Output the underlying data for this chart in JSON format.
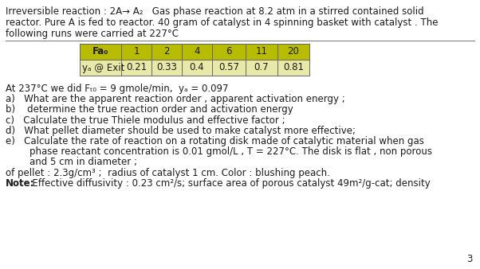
{
  "title_line1": "Irreversible reaction : 2A→ A₂   Gas phase reaction at 8.2 atm in a stirred contained solid",
  "title_line2": "reactor. Pure A is fed to reactor. 40 gram of catalyst in 4 spinning basket with catalyst . The",
  "title_line3": "following runs were carried at 227°C",
  "table_header": [
    "Fa₀",
    "1",
    "2",
    "4",
    "6",
    "11",
    "20"
  ],
  "table_row_label": "yₐ @ Exit",
  "table_row_values": [
    "0.21",
    "0.33",
    "0.4",
    "0.57",
    "0.7",
    "0.81"
  ],
  "table_header_bg": "#b8bc00",
  "table_row_bg": "#e8e8a8",
  "body_lines": [
    "At 237°C we did Fₜ₀ = 9 gmole/min,  yₐ = 0.097",
    "a)   What are the apparent reaction order , apparent activation energy ;",
    "b)    determine the true reaction order and activation energy",
    "c)   Calculate the true Thiele modulus and effective factor ;",
    "d)   What pellet diameter should be used to make catalyst more effective;",
    "e)   Calculate the rate of reaction on a rotating disk made of catalytic material when gas",
    "        phase reactant concentration is 0.01 gmol/L , T = 227°C. The disk is flat , non porous",
    "        and 5 cm in diameter ;",
    "of pellet : 2.3g/cm³ ;  radius of catalyst 1 cm. Color : blushing peach."
  ],
  "note_bold": "Note:",
  "note_rest": "  Effective diffusivity : 0.23 cm²/s; surface area of porous catalyst 49m²/g-cat; density",
  "bg_color": "#ffffff",
  "text_color": "#1c1c1c",
  "font_size": 8.5,
  "page_number": "3"
}
